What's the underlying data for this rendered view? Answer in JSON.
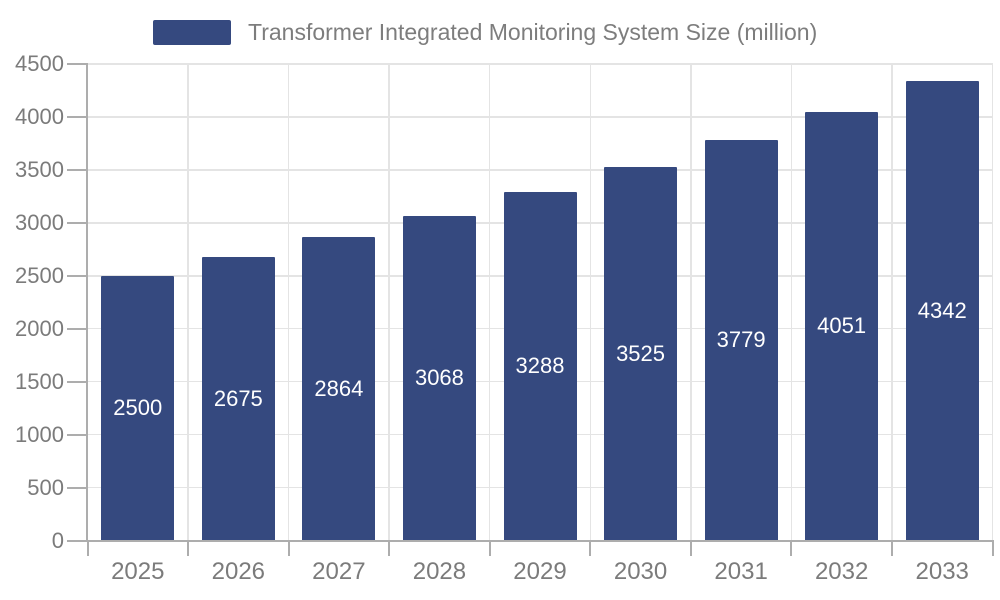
{
  "legend": {
    "label": "Transformer Integrated Monitoring System Size (million)"
  },
  "chart_data": {
    "type": "bar",
    "title": "Transformer Integrated Monitoring System Size (million)",
    "categories": [
      "2025",
      "2026",
      "2027",
      "2028",
      "2029",
      "2030",
      "2031",
      "2032",
      "2033"
    ],
    "values": [
      2500,
      2675,
      2864,
      3068,
      3288,
      3525,
      3779,
      4051,
      4342
    ],
    "xlabel": "",
    "ylabel": "",
    "ylim": [
      0,
      4500
    ],
    "ytick_interval": 500,
    "yticks": [
      0,
      500,
      1000,
      1500,
      2000,
      2500,
      3000,
      3500,
      4000,
      4500
    ],
    "grid": true,
    "legend_position": "top",
    "value_labels": "inside-center",
    "colors": {
      "bar": "#35497F",
      "value_label": "#ffffff",
      "axis_text": "#7b7b7b",
      "legend_text": "#7d7d7d",
      "grid_line": "#e4e4e4",
      "axis_line": "#adadad",
      "background": "#ffffff"
    }
  }
}
